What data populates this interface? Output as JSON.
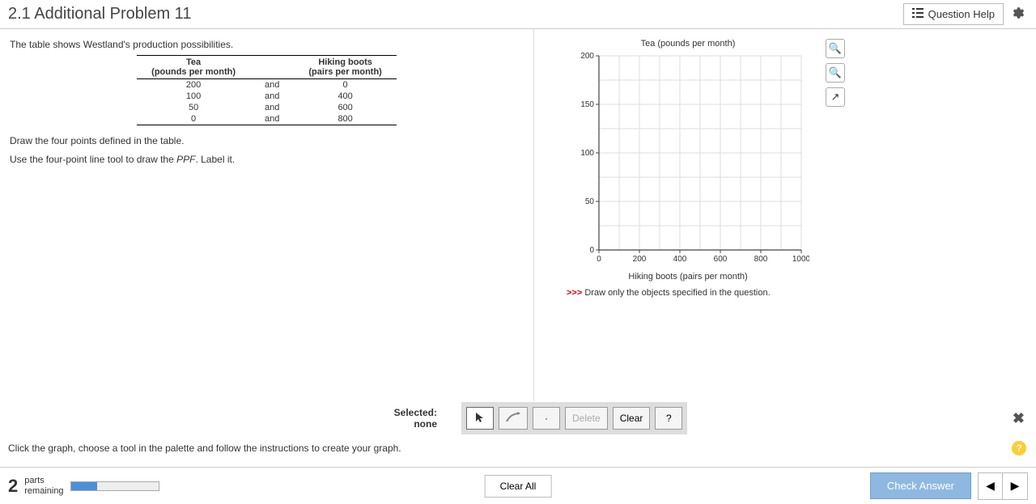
{
  "header": {
    "title": "2.1 Additional Problem 11",
    "question_help": "Question Help"
  },
  "left": {
    "intro": "The table shows Westland's production possibilities.",
    "table": {
      "col1_header_line1": "Tea",
      "col1_header_line2": "(pounds per month)",
      "col2_header_line1": "Hiking boots",
      "col2_header_line2": "(pairs per month)",
      "joiner": "and",
      "rows": [
        {
          "tea": "200",
          "boots": "0"
        },
        {
          "tea": "100",
          "boots": "400"
        },
        {
          "tea": "50",
          "boots": "600"
        },
        {
          "tea": "0",
          "boots": "800"
        }
      ]
    },
    "instr1": "Draw the four points defined in the table.",
    "instr2": "Use the four-point line tool to draw the PPF. Label it."
  },
  "chart": {
    "title": "Tea (pounds per month)",
    "xlabel": "Hiking boots (pairs per month)",
    "xlim": [
      0,
      1000
    ],
    "ylim": [
      0,
      200
    ],
    "xtick_step": 200,
    "ytick_step": 50,
    "grid_color": "#dddddd",
    "axis_color": "#444444",
    "background": "#ffffff",
    "xticks": [
      "0",
      "200",
      "400",
      "600",
      "800",
      "1000"
    ],
    "yticks": [
      "0",
      "50",
      "100",
      "150",
      "200"
    ],
    "hint": "Draw only the objects specified in the question."
  },
  "palette": {
    "selected_label": "Selected:",
    "selected_value": "none",
    "delete": "Delete",
    "clear": "Clear",
    "help": "?"
  },
  "graph_instr": "Click the graph, choose a tool in the palette and follow the instructions to create your graph.",
  "footer": {
    "parts_num": "2",
    "parts_label1": "parts",
    "parts_label2": "remaining",
    "progress_pct": 30,
    "clear_all": "Clear All",
    "check_answer": "Check Answer"
  }
}
